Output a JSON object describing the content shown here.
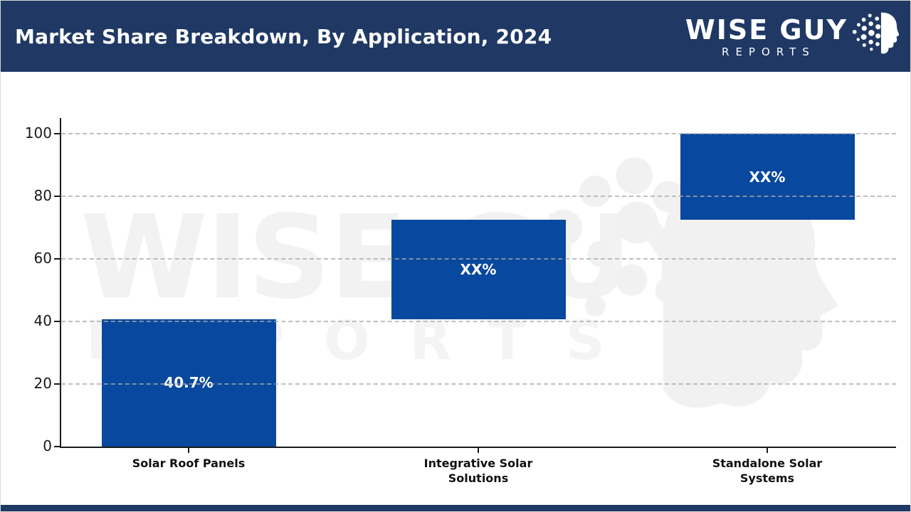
{
  "header": {
    "title": "Market Share Breakdown, By Application, 2024",
    "logo": {
      "line1": "WISE GUY",
      "line2": "REPORTS"
    }
  },
  "watermark": {
    "line1": "WISE GUY",
    "line2": "REPORTS"
  },
  "colors": {
    "header_bg": "#1f3864",
    "footer_bg": "#1f3864",
    "bar": "#08489e",
    "grid": "#aaaaaa",
    "axis": "#1a1a1a",
    "bar_label": "#ffffff",
    "category_label": "#111111",
    "watermark": "#f2f2f2"
  },
  "chart_data": {
    "type": "bar",
    "subtype": "stepped-waterfall",
    "title": "Market Share Breakdown, By Application, 2024",
    "categories": [
      "Solar Roof Panels",
      "Integrative Solar\nSolutions",
      "Standalone Solar\nSystems"
    ],
    "bars": [
      {
        "category": "Solar Roof Panels",
        "start": 0,
        "end": 40.7,
        "label": "40.7%"
      },
      {
        "category": "Integrative Solar Solutions",
        "start": 40.7,
        "end": 72.5,
        "label": "XX%"
      },
      {
        "category": "Standalone Solar Systems",
        "start": 72.5,
        "end": 100,
        "label": "XX%"
      }
    ],
    "xlabel": "",
    "ylabel": "",
    "yticks": [
      0,
      20,
      40,
      60,
      80,
      100
    ],
    "ylim": [
      0,
      105
    ],
    "grid": "dashed-horizontal",
    "legend": "none"
  }
}
